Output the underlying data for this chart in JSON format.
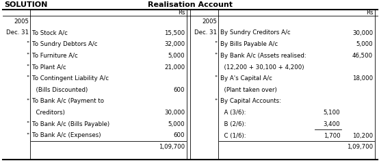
{
  "title_left": "SOLUTION",
  "title_center": "Realisation Account",
  "left_rows": [
    {
      "col1": "2005",
      "col2": "",
      "col3": ""
    },
    {
      "col1": "Dec. 31",
      "col2": "To Stock A/c",
      "col3": "15,500"
    },
    {
      "col1": "\"",
      "col2": "To Sundry Debtors A/c",
      "col3": "32,000"
    },
    {
      "col1": "\"",
      "col2": "To Furniture A/c",
      "col3": "5,000"
    },
    {
      "col1": "\"",
      "col2": "To Plant A/c",
      "col3": "21,000"
    },
    {
      "col1": "\"",
      "col2": "To Contingent Liability A/c",
      "col3": ""
    },
    {
      "col1": "",
      "col2": "  (Bills Discounted)",
      "col3": "600"
    },
    {
      "col1": "\"",
      "col2": "To Bank A/c (Payment to",
      "col3": ""
    },
    {
      "col1": "",
      "col2": "  Creditors)",
      "col3": "30,000"
    },
    {
      "col1": "\"",
      "col2": "To Bank A/c (Bills Payable)",
      "col3": "5,000"
    },
    {
      "col1": "\"",
      "col2": "To Bank A/c (Expenses)",
      "col3": "600"
    },
    {
      "col1": "",
      "col2": "",
      "col3": "1,09,700"
    }
  ],
  "right_rows": [
    {
      "col1": "2005",
      "col2": "",
      "col2b": "",
      "col3": ""
    },
    {
      "col1": "Dec. 31",
      "col2": "By Sundry Creditors A/c",
      "col2b": "",
      "col3": "30,000"
    },
    {
      "col1": "\"",
      "col2": "By Bills Payable A/c",
      "col2b": "",
      "col3": "5,000"
    },
    {
      "col1": "\"",
      "col2": "By Bank A/c (Assets realised:",
      "col2b": "",
      "col3": "46,500"
    },
    {
      "col1": "",
      "col2": "  (12,200 + 30,100 + 4,200)",
      "col2b": "",
      "col3": ""
    },
    {
      "col1": "\"",
      "col2": "By A's Capital A/c",
      "col2b": "",
      "col3": "18,000"
    },
    {
      "col1": "",
      "col2": "  (Plant taken over)",
      "col2b": "",
      "col3": ""
    },
    {
      "col1": "\"",
      "col2": "By Capital Accounts:",
      "col2b": "",
      "col3": ""
    },
    {
      "col1": "",
      "col2": "  A (3/6):",
      "col2b": "5,100",
      "col3": ""
    },
    {
      "col1": "",
      "col2": "  B (2/6):",
      "col2b": "3,400",
      "col3": ""
    },
    {
      "col1": "",
      "col2": "  C (1/6):",
      "col2b": "1,700",
      "col3": "10,200"
    },
    {
      "col1": "",
      "col2": "",
      "col2b": "",
      "col3": "1,09,700"
    }
  ],
  "bg_color": "#ffffff",
  "text_color": "#000000",
  "font_size": 6.2,
  "title_font_size": 8.0
}
